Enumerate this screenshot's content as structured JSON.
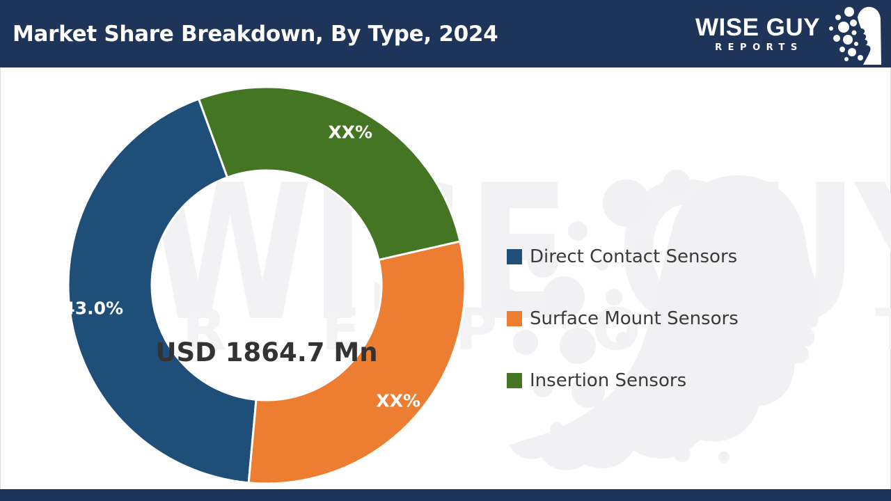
{
  "header": {
    "title": "Market Share Breakdown, By Type, 2024",
    "bg_color": "#1f3459",
    "logo": {
      "line1": "WISE GUY",
      "line2": "REPORTS"
    }
  },
  "chart_data": {
    "type": "donut",
    "title": "Market Share Breakdown, By Type, 2024",
    "center_label": "USD 1864.7 Mn",
    "start_angle_deg": 110,
    "direction": "counterclockwise",
    "outer_radius_px": 285,
    "inner_radius_px": 165,
    "segment_border_color": "#ffffff",
    "legend_position": "right",
    "segments": [
      {
        "name": "Direct Contact Sensors",
        "value_pct": 43.0,
        "display_label": "43.0%",
        "color": "#1f4e79"
      },
      {
        "name": "Surface Mount Sensors",
        "value_pct": 30.0,
        "display_label": "XX%",
        "color": "#ed7d31"
      },
      {
        "name": "Insertion Sensors",
        "value_pct": 27.0,
        "display_label": "XX%",
        "color": "#447523"
      }
    ]
  },
  "watermark": {
    "line1": "WISE GUY",
    "line2": "R E P O R T S"
  },
  "footer": {
    "bg_color": "#1f3459"
  }
}
